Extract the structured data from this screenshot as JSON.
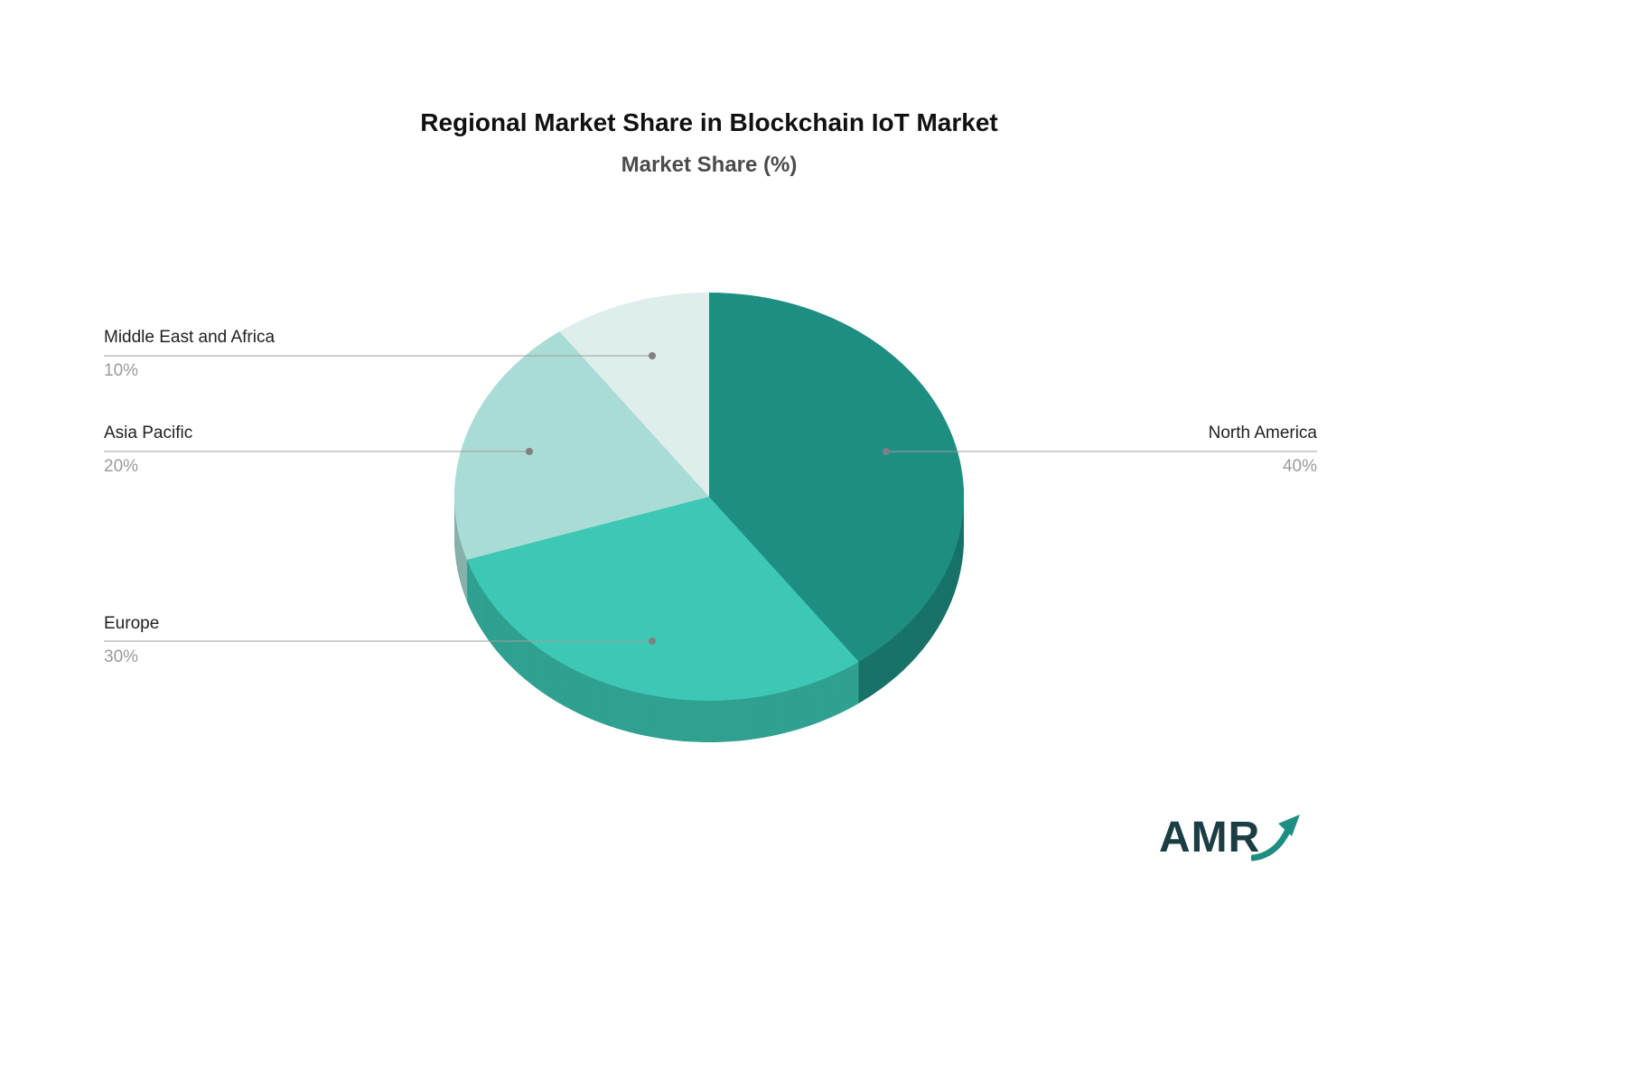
{
  "chart_data": {
    "type": "pie",
    "title": "Regional Market Share in Blockchain IoT Market",
    "subtitle": "Market Share (%)",
    "categories": [
      "North America",
      "Europe",
      "Asia Pacific",
      "Middle East and Africa"
    ],
    "values": [
      40,
      30,
      20,
      10
    ],
    "unit": "%",
    "slice_colors": [
      "#1e8e83",
      "#3cc8b5",
      "#aadcd6",
      "#ddeeec"
    ],
    "depth_shade_factor": 0.8,
    "start_angle_deg": -90,
    "direction": "clockwise",
    "legend_position": "none",
    "labels": [
      {
        "name": "North America",
        "value_label": "40%",
        "side": "right"
      },
      {
        "name": "Europe",
        "value_label": "30%",
        "side": "left"
      },
      {
        "name": "Asia Pacific",
        "value_label": "20%",
        "side": "left"
      },
      {
        "name": "Middle East and Africa",
        "value_label": "10%",
        "side": "left"
      }
    ]
  },
  "logo": {
    "text": "AMR",
    "text_color": "#1b3e44",
    "arrow_color": "#1e8e83"
  }
}
